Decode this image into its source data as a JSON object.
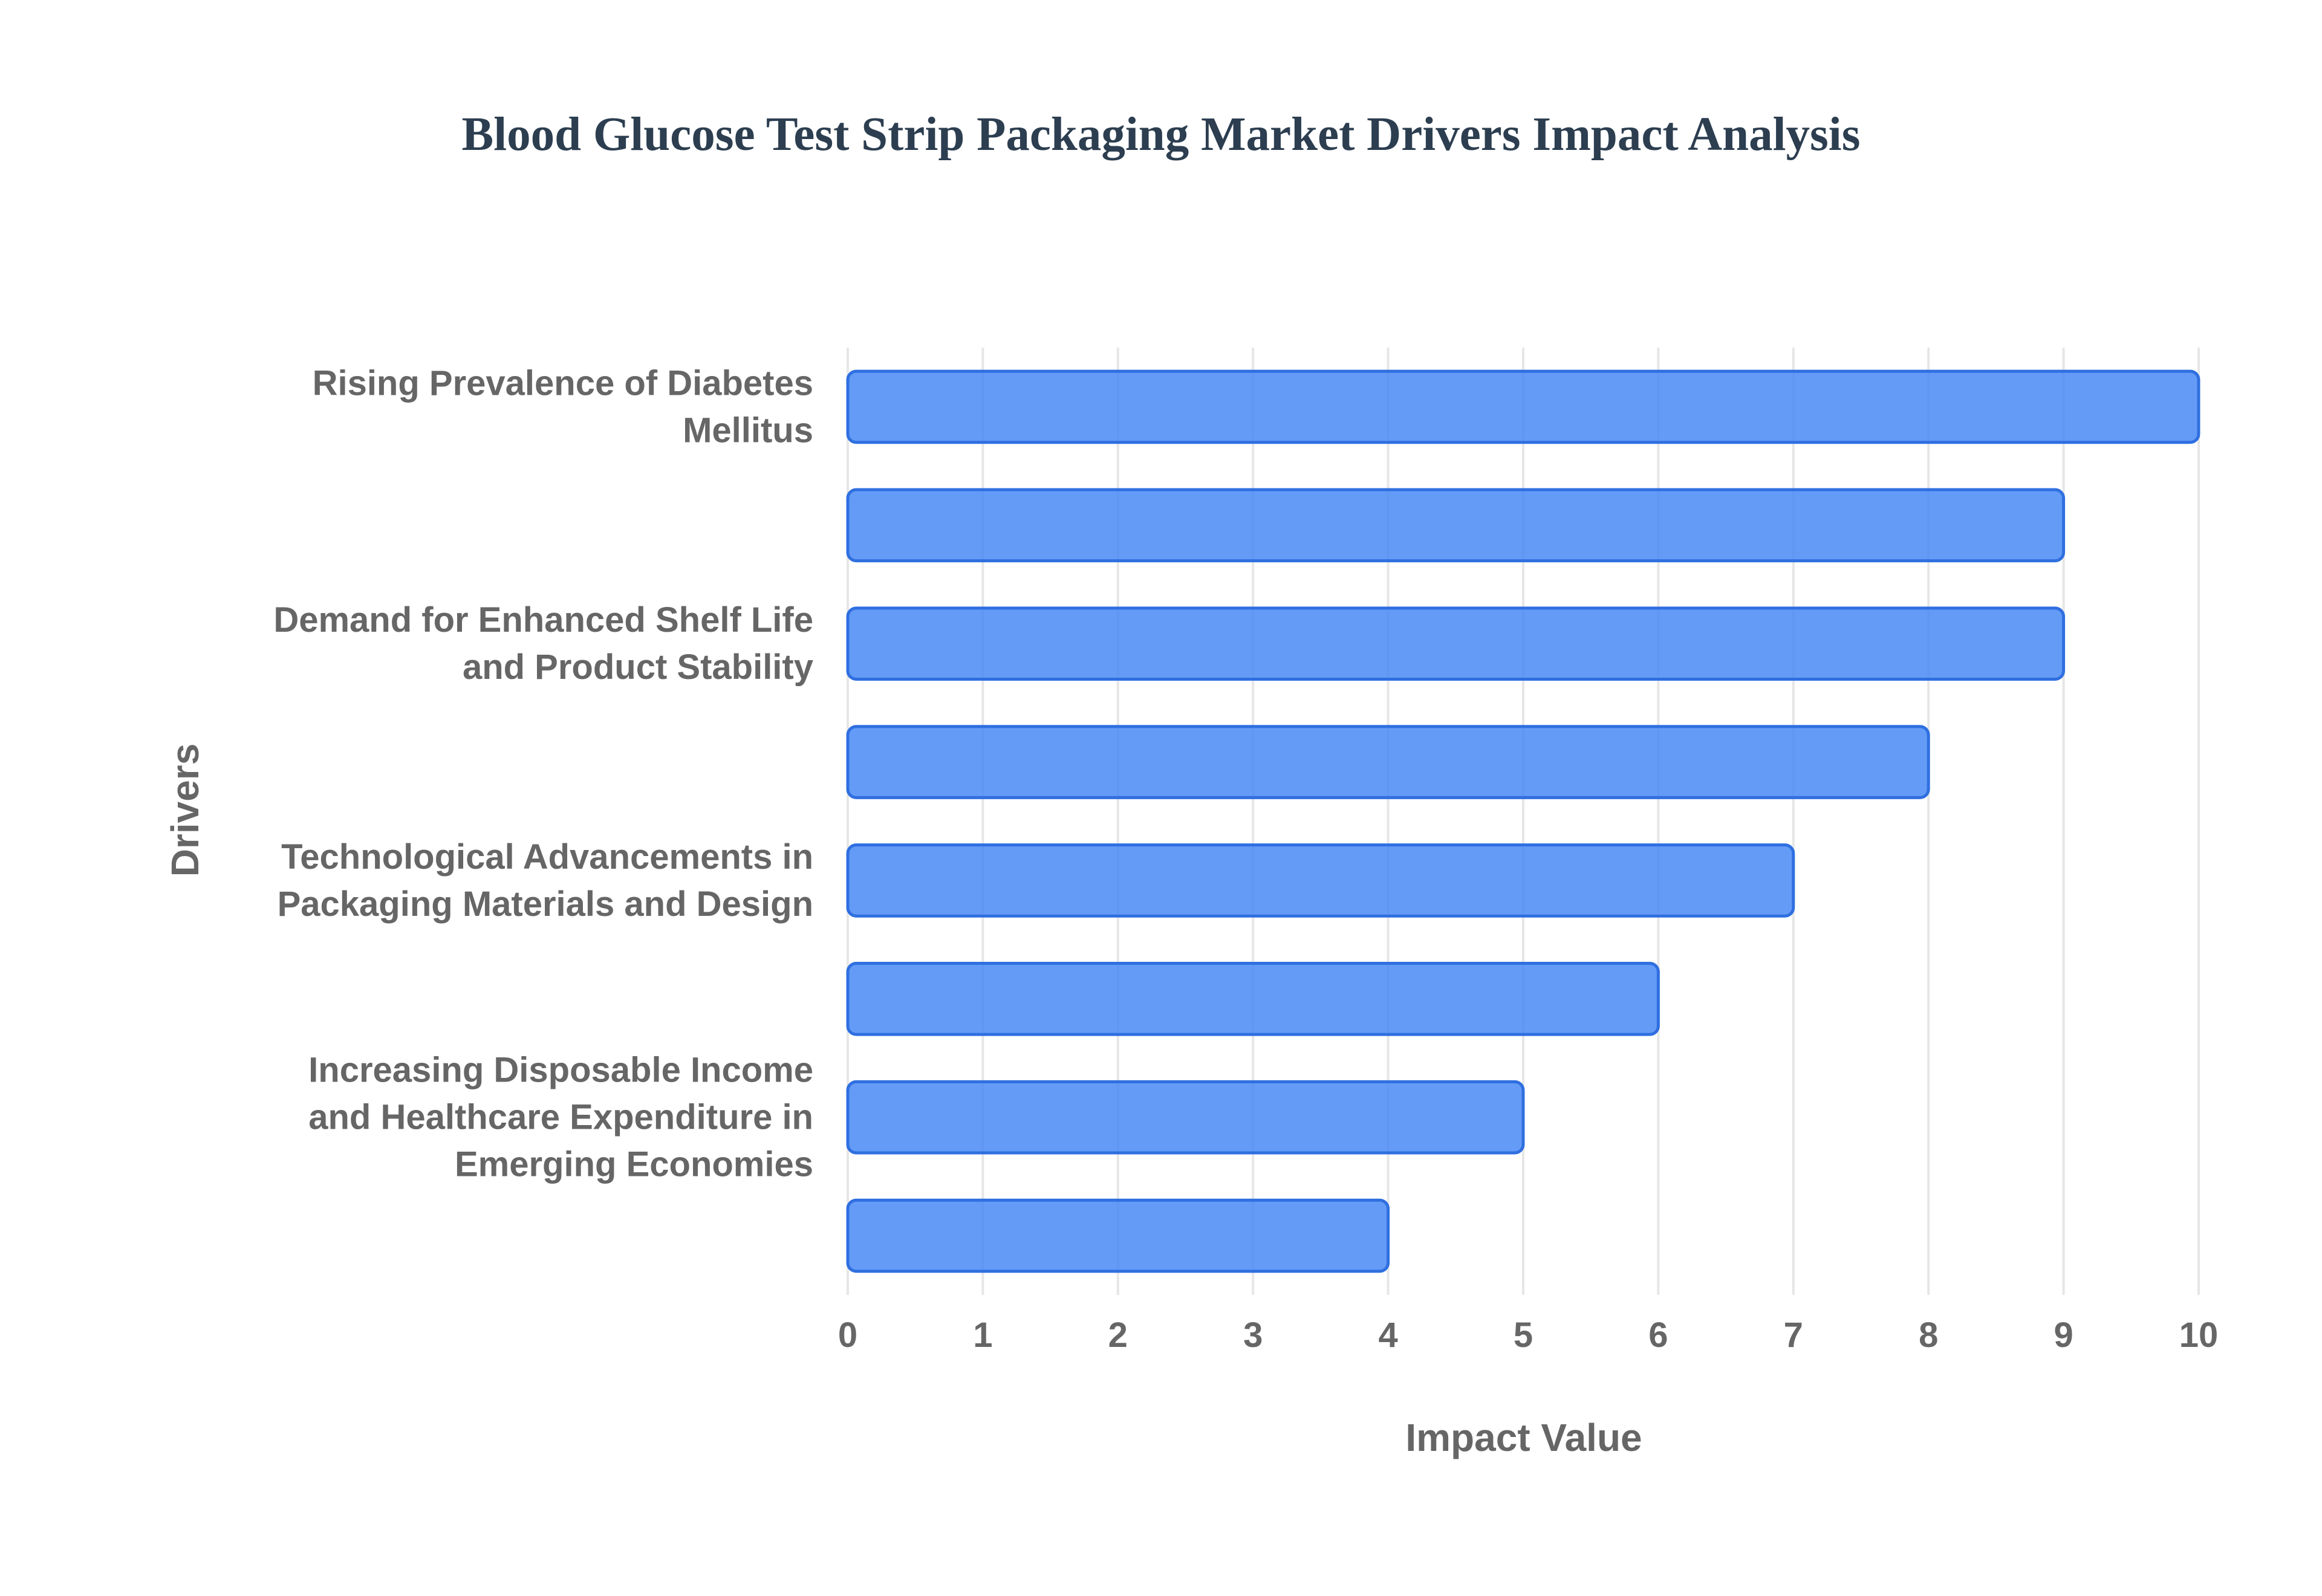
{
  "chart_data": {
    "type": "bar",
    "orientation": "horizontal",
    "title": "Blood Glucose Test Strip Packaging Market Drivers Impact Analysis",
    "xlabel": "Impact Value",
    "ylabel": "Drivers",
    "xlim": [
      0,
      10
    ],
    "x_ticks": [
      "0",
      "1",
      "2",
      "3",
      "4",
      "5",
      "6",
      "7",
      "8",
      "9",
      "10"
    ],
    "grid": true,
    "bar_color": "#4285f4",
    "categories": [
      {
        "label": "Rising Prevalence of Diabetes Mellitus",
        "label_lines": [
          "Rising Prevalence of Diabetes",
          "Mellitus"
        ],
        "value": 10
      },
      {
        "label": "",
        "label_lines": [],
        "value": 9
      },
      {
        "label": "Demand for Enhanced Shelf Life and Product Stability",
        "label_lines": [
          "Demand for Enhanced Shelf Life",
          "and Product Stability"
        ],
        "value": 9
      },
      {
        "label": "",
        "label_lines": [],
        "value": 8
      },
      {
        "label": "Technological Advancements in Packaging Materials and Design",
        "label_lines": [
          "Technological Advancements in",
          "Packaging Materials and Design"
        ],
        "value": 7
      },
      {
        "label": "",
        "label_lines": [],
        "value": 6
      },
      {
        "label": "Increasing Disposable Income and Healthcare Expenditure in Emerging Economies",
        "label_lines": [
          "Increasing Disposable Income",
          "and Healthcare Expenditure in",
          "Emerging Economies"
        ],
        "value": 5
      },
      {
        "label": "",
        "label_lines": [],
        "value": 4
      }
    ]
  }
}
